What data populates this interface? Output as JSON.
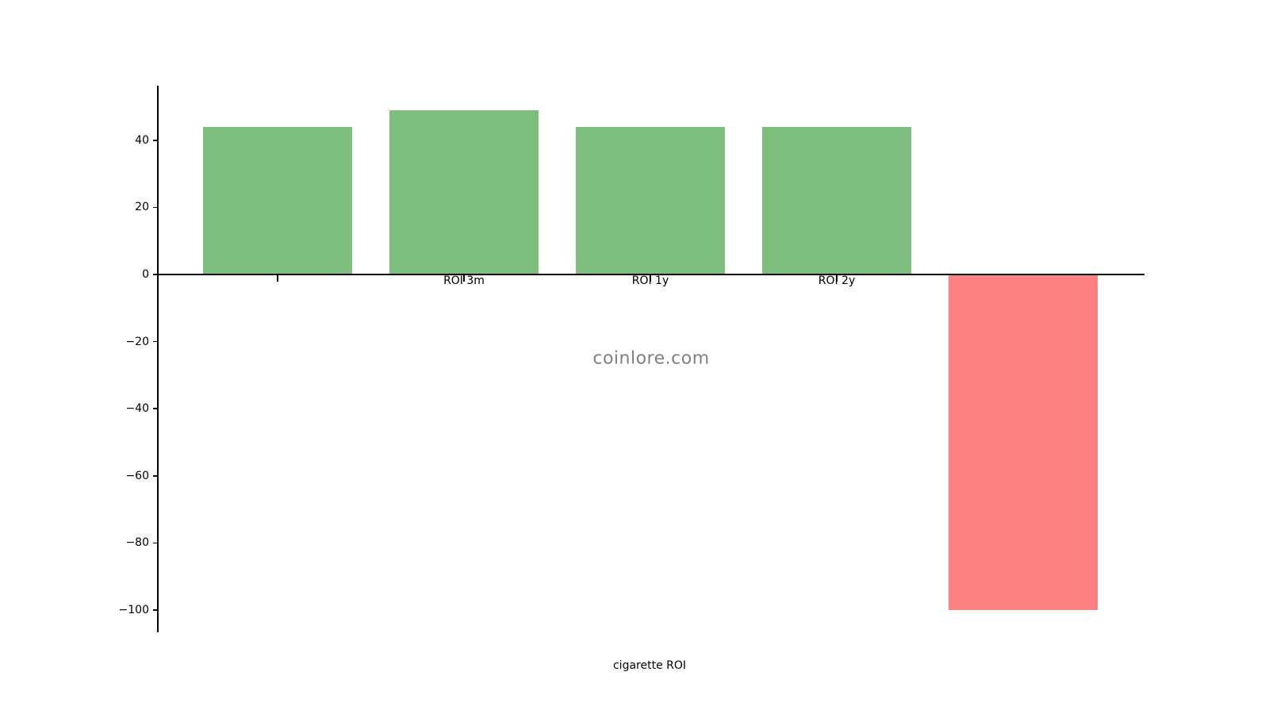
{
  "chart_data": {
    "type": "bar",
    "title": "",
    "xlabel": "cigarette ROI",
    "ylabel": "",
    "categories": [
      "",
      "ROI 3m",
      "ROI 1y",
      "ROI 2y",
      ""
    ],
    "values": [
      44,
      49,
      44,
      44,
      -100
    ],
    "yticks": [
      40,
      20,
      0,
      -20,
      -40,
      -60,
      -80,
      -100
    ],
    "ytick_labels": [
      "40",
      "20",
      "0",
      "−20",
      "−40",
      "−60",
      "−80",
      "−100"
    ],
    "ylim": [
      -106.5,
      56.5
    ],
    "grid": false,
    "legend": null,
    "positive_color": "#7dbe7d",
    "negative_color": "#fd8181",
    "axis_color": "#000000"
  },
  "watermark": {
    "text": "coinlore.com",
    "color": "#808080"
  }
}
